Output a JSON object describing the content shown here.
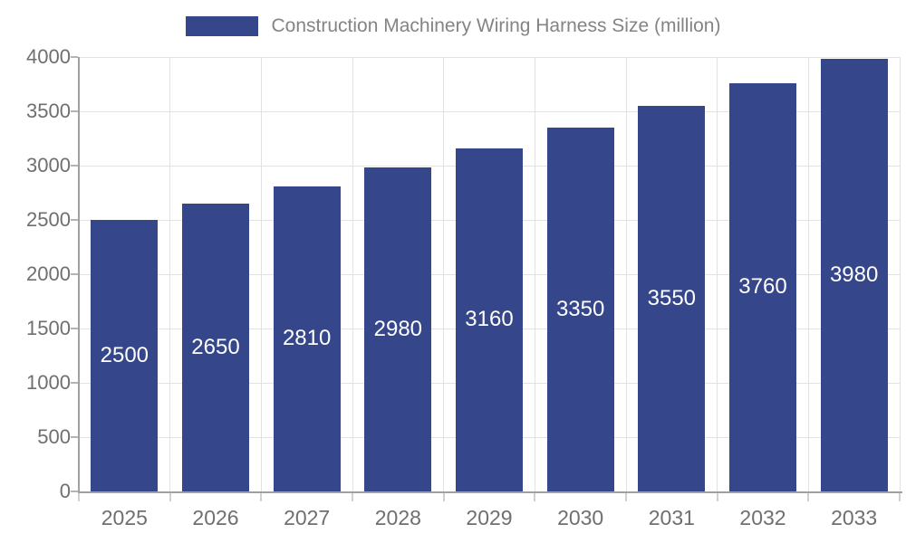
{
  "legend": {
    "label": "Construction Machinery Wiring Harness Size (million)"
  },
  "chart_data": {
    "type": "bar",
    "title": "Construction Machinery Wiring Harness Size (million)",
    "series_name": "Construction Machinery Wiring Harness Size (million)",
    "categories": [
      "2025",
      "2026",
      "2027",
      "2028",
      "2029",
      "2030",
      "2031",
      "2032",
      "2033"
    ],
    "values": [
      2500,
      2650,
      2810,
      2980,
      3160,
      3350,
      3550,
      3760,
      3980
    ],
    "data_labels": [
      "2500",
      "2650",
      "2810",
      "2980",
      "3160",
      "3350",
      "3550",
      "3760",
      "3980"
    ],
    "xlabel": "",
    "ylabel": "",
    "ylim": [
      0,
      4000
    ],
    "yticks": [
      0,
      500,
      1000,
      1500,
      2000,
      2500,
      3000,
      3500,
      4000
    ],
    "grid": true,
    "legend_position": "top",
    "data_label_position": "inside-center"
  },
  "colors": {
    "bar": "#35478A",
    "bar_label": "#ffffff",
    "grid_line": "#e2e2e2",
    "axis_line": "#a0a0a0",
    "y_tick_mark": "#b4b4b4",
    "x_tick_mark": "#d0d0d0",
    "tick_text": "#6f6f6f",
    "legend_text": "#848484",
    "background": "#ffffff"
  }
}
